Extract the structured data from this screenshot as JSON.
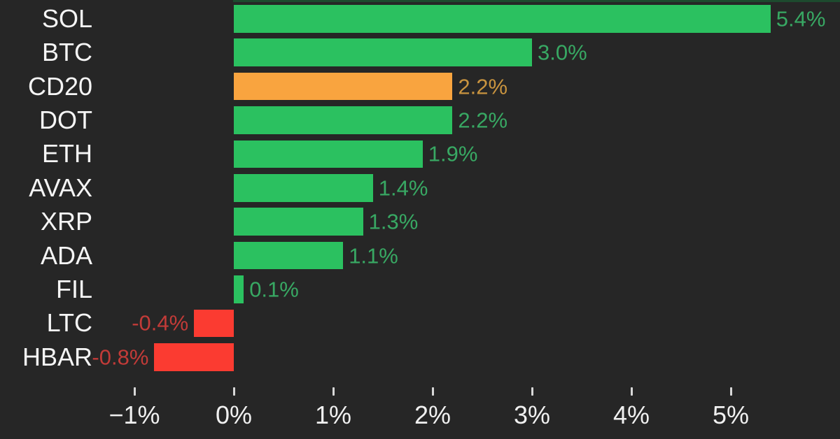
{
  "chart_data": {
    "type": "bar",
    "orientation": "horizontal",
    "title": "",
    "xlabel": "",
    "ylabel": "",
    "categories": [
      "SOL",
      "BTC",
      "CD20",
      "DOT",
      "ETH",
      "AVAX",
      "XRP",
      "ADA",
      "FIL",
      "LTC",
      "HBAR"
    ],
    "values": [
      5.4,
      3.0,
      2.2,
      2.2,
      1.9,
      1.4,
      1.3,
      1.1,
      0.1,
      -0.4,
      -0.8
    ],
    "value_labels": [
      "5.4%",
      "3.0%",
      "2.2%",
      "2.2%",
      "1.9%",
      "1.4%",
      "1.3%",
      "1.1%",
      "0.1%",
      "-0.4%",
      "-0.8%"
    ],
    "bar_colors": [
      "green",
      "green",
      "orange",
      "green",
      "green",
      "green",
      "green",
      "green",
      "green",
      "red",
      "red"
    ],
    "x_ticks": [
      "−1%",
      "0%",
      "1%",
      "2%",
      "3%",
      "4%",
      "5%"
    ],
    "x_tick_values": [
      -1,
      0,
      1,
      2,
      3,
      4,
      5
    ],
    "xlim": [
      -1.4,
      6.1
    ],
    "grid": false,
    "legend": false
  },
  "palette": {
    "background": "#262626",
    "green_bar": "#2bc160",
    "green_text": "#38a863",
    "orange_bar": "#f9a43f",
    "orange_text": "#c9943f",
    "red_bar": "#fb3b31",
    "red_text": "#c23b38",
    "category_label": "#f5f5f5",
    "axis_label": "#f0f0f0",
    "tick": "#d8d8d8",
    "cropped_strip": "#1d4a2e"
  }
}
